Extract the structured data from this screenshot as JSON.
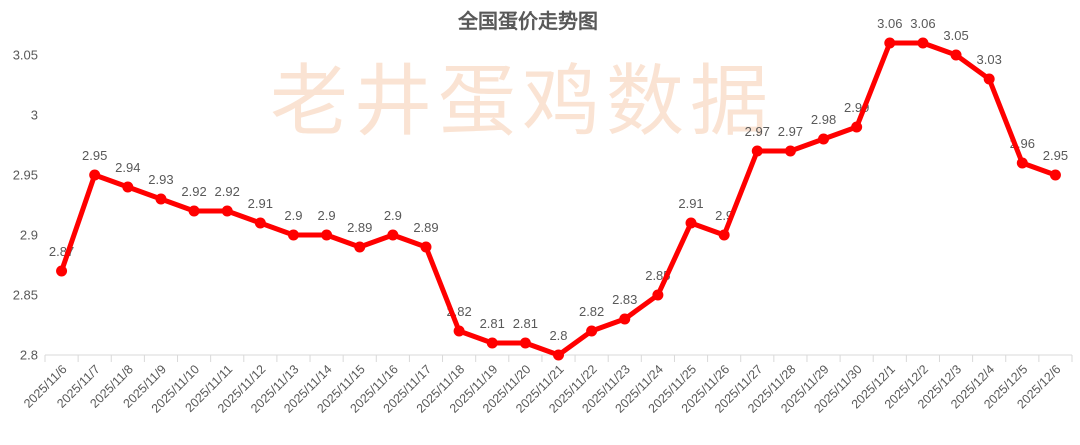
{
  "title": "全国蛋价走势图",
  "watermark": "老井蛋鸡数据",
  "chart_data": {
    "type": "line",
    "title": "全国蛋价走势图",
    "categories": [
      "2025/11/6",
      "2025/11/7",
      "2025/11/8",
      "2025/11/9",
      "2025/11/10",
      "2025/11/11",
      "2025/11/12",
      "2025/11/13",
      "2025/11/14",
      "2025/11/15",
      "2025/11/16",
      "2025/11/17",
      "2025/11/18",
      "2025/11/19",
      "2025/11/20",
      "2025/11/21",
      "2025/11/22",
      "2025/11/23",
      "2025/11/24",
      "2025/11/25",
      "2025/11/26",
      "2025/11/27",
      "2025/11/28",
      "2025/11/29",
      "2025/11/30",
      "2025/12/1",
      "2025/12/2",
      "2025/12/3",
      "2025/12/4",
      "2025/12/5",
      "2025/12/6"
    ],
    "values": [
      2.87,
      2.95,
      2.94,
      2.93,
      2.92,
      2.92,
      2.91,
      2.9,
      2.9,
      2.89,
      2.9,
      2.89,
      2.82,
      2.81,
      2.81,
      2.8,
      2.82,
      2.83,
      2.85,
      2.91,
      2.9,
      2.97,
      2.97,
      2.98,
      2.99,
      3.06,
      3.06,
      3.05,
      3.03,
      2.96,
      2.95
    ],
    "xlabel": "",
    "ylabel": "",
    "ylim": [
      2.8,
      3.08
    ],
    "y_ticks": [
      2.8,
      2.85,
      2.9,
      2.95,
      3,
      3.05
    ],
    "y_tick_labels": [
      "2.8",
      "2.85",
      "2.9",
      "2.95",
      "3",
      "3.05"
    ],
    "x_label_rotation": -45,
    "grid": false,
    "legend": "none",
    "data_labels": true,
    "series_color": "#ff0000",
    "label_color": "#595959",
    "axis_color": "#d9d9d9",
    "watermark_color": "#fae3d3"
  }
}
